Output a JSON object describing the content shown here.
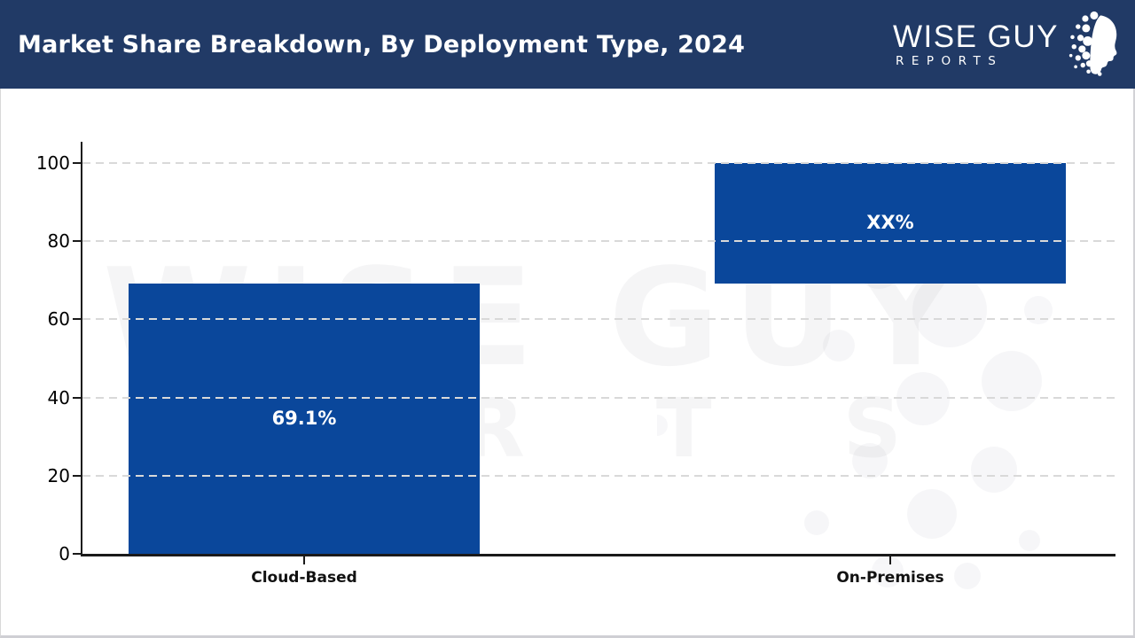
{
  "header": {
    "title": "Market Share Breakdown, By Deployment Type, 2024",
    "logo": {
      "line1": "WISE GUY",
      "line2": "REPORTS"
    }
  },
  "watermark": {
    "line1": "WISE GUY",
    "line2": "R T S"
  },
  "colors": {
    "header_bg": "#213a66",
    "bar": "#0a479b",
    "grid": "#d9d9d9",
    "axis": "#1a1a1a",
    "bar_label": "#ffffff",
    "frame_border": "#d2d2d6"
  },
  "chart_data": {
    "type": "bar",
    "title": "Market Share Breakdown, By Deployment Type, 2024",
    "categories": [
      "Cloud-Based",
      "On-Premises"
    ],
    "bars": [
      {
        "category": "Cloud-Based",
        "start": 0,
        "end": 69.1,
        "label": "69.1%"
      },
      {
        "category": "On-Premises",
        "start": 69.1,
        "end": 100,
        "label": "XX%"
      }
    ],
    "series_note": "second bar floats from 69.1 to 100 (implied remainder 30.9%, masked as XX%)",
    "xlabel": "",
    "ylabel": "",
    "ylim": [
      0,
      100
    ],
    "yticks": [
      0,
      20,
      40,
      60,
      80,
      100
    ],
    "grid": "horizontal dashed, drawn over bars",
    "legend": "none",
    "bar_color": "#0a479b"
  }
}
